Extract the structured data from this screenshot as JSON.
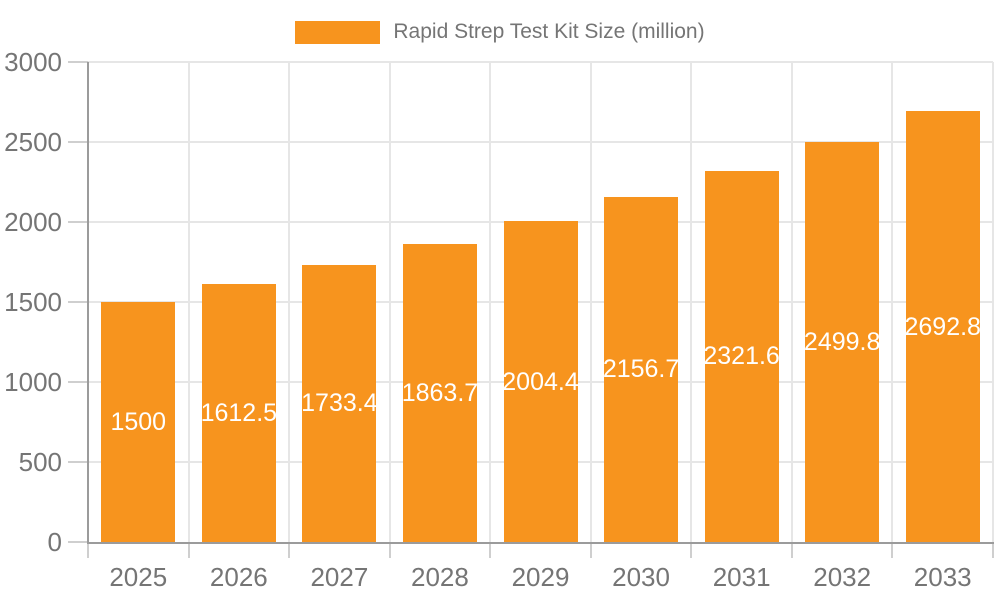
{
  "chart_data": {
    "type": "bar",
    "title": "Rapid Strep Test Kit Size (million)",
    "categories": [
      "2025",
      "2026",
      "2027",
      "2028",
      "2029",
      "2030",
      "2031",
      "2032",
      "2033"
    ],
    "values": [
      1500,
      1612.5,
      1733.4,
      1863.7,
      2004.4,
      2156.7,
      2321.6,
      2499.8,
      2692.8
    ],
    "value_labels": [
      "1500",
      "1612.5",
      "1733.4",
      "1863.7",
      "2004.4",
      "2156.7",
      "2321.6",
      "2499.8",
      "2692.8"
    ],
    "xlabel": "",
    "ylabel": "",
    "ylim": [
      0,
      3000
    ],
    "ytick_step": 500,
    "ytick_labels": [
      "0",
      "500",
      "1000",
      "1500",
      "2000",
      "2500",
      "3000"
    ],
    "grid": true,
    "legend_position": "top",
    "colors": {
      "bar": "#F7941E",
      "value_label": "#ffffff",
      "axis_text": "#757575",
      "grid_line": "#e6e6e6",
      "axis_line": "#9b9b9b",
      "tick_line": "#cfcfcf",
      "background": "#ffffff"
    }
  }
}
